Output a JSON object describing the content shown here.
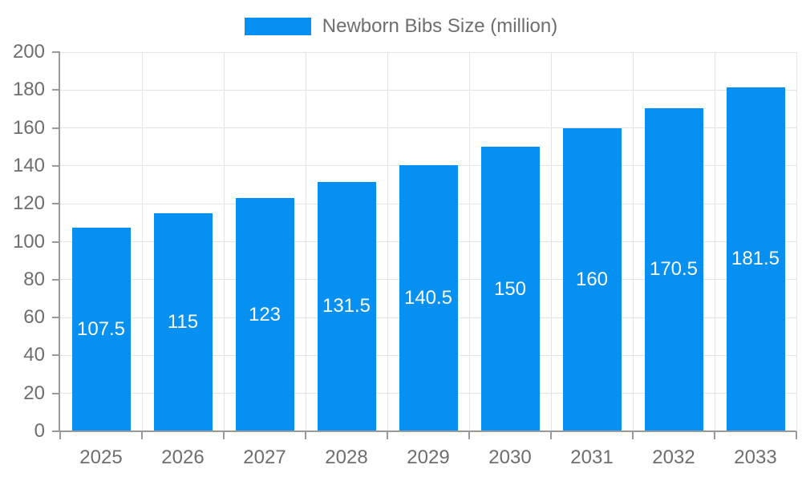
{
  "chart_data": {
    "type": "bar",
    "title": "Newborn Bibs Size (million)",
    "categories": [
      "2025",
      "2026",
      "2027",
      "2028",
      "2029",
      "2030",
      "2031",
      "2032",
      "2033"
    ],
    "values": [
      107.5,
      115,
      123,
      131.5,
      140.5,
      150,
      160,
      170.5,
      181.5
    ],
    "xlabel": "",
    "ylabel": "",
    "ylim": [
      0,
      200
    ],
    "ytick_step": 20,
    "grid": true,
    "legend_position": "top-center",
    "bar_color": "#0590f2",
    "value_label_color": "#ffffff",
    "axis_color": "#9a9a9a",
    "grid_color": "#e4e4e4",
    "tick_label_color": "#6e6e6e"
  },
  "legend": {
    "label": "Newborn Bibs Size (million)",
    "swatch_icon": "legend-swatch"
  }
}
